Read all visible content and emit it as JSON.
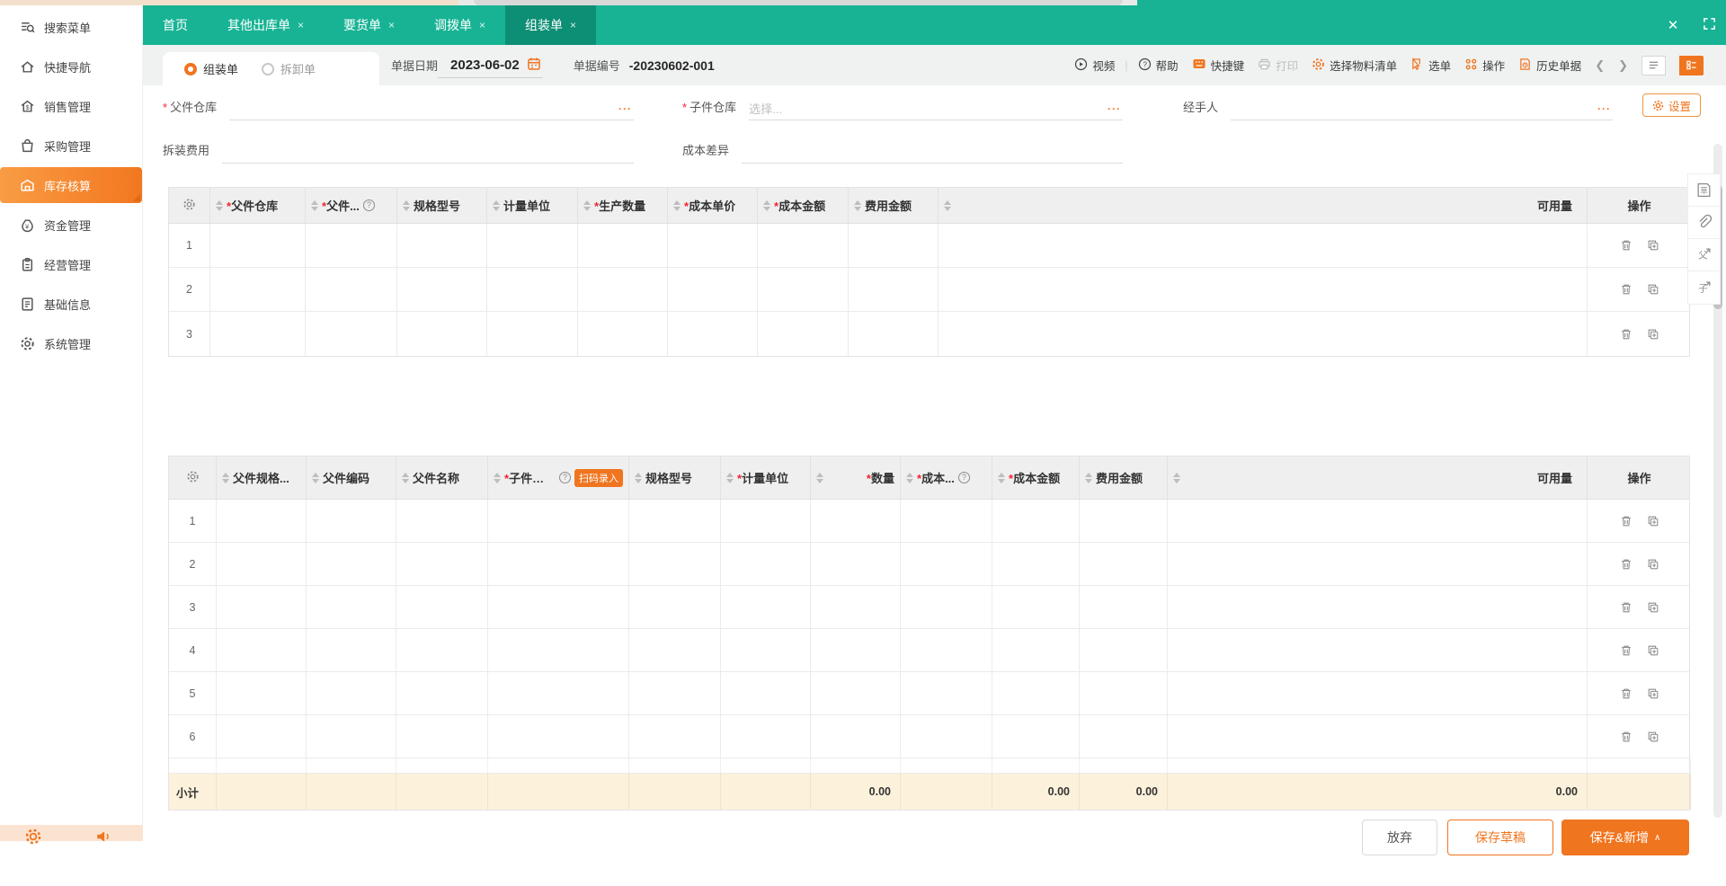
{
  "colors": {
    "teal": "#17b394",
    "teal_active": "#0c8f74",
    "accent": "#f0751f",
    "subtotal_bg": "#fcf1db",
    "required_red": "#f5222d"
  },
  "tabs": [
    {
      "label": "首页",
      "closable": false,
      "active": false
    },
    {
      "label": "其他出库单",
      "closable": true,
      "active": false
    },
    {
      "label": "要货单",
      "closable": true,
      "active": false
    },
    {
      "label": "调拨单",
      "closable": true,
      "active": false
    },
    {
      "label": "组装单",
      "closable": true,
      "active": true
    }
  ],
  "window_controls": {
    "close": "✕"
  },
  "sidebar": {
    "items": [
      {
        "label": "搜索菜单",
        "icon": "search",
        "active": false
      },
      {
        "label": "快捷导航",
        "icon": "home",
        "active": false
      },
      {
        "label": "销售管理",
        "icon": "sales",
        "active": false
      },
      {
        "label": "采购管理",
        "icon": "purchase",
        "active": false
      },
      {
        "label": "库存核算",
        "icon": "inventory",
        "active": true
      },
      {
        "label": "资金管理",
        "icon": "funds",
        "active": false
      },
      {
        "label": "经营管理",
        "icon": "business",
        "active": false
      },
      {
        "label": "基础信息",
        "icon": "baseinfo",
        "active": false
      },
      {
        "label": "系统管理",
        "icon": "system",
        "active": false
      }
    ]
  },
  "doc_toolbar": {
    "radios": [
      {
        "label": "组装单",
        "selected": true
      },
      {
        "label": "拆卸单",
        "selected": false
      }
    ],
    "date_label": "单据日期",
    "date_value": "2023-06-02",
    "no_label": "单据编号",
    "no_value": "-20230602-001",
    "actions": [
      {
        "label": "视频",
        "icon": "video",
        "disabled": false
      },
      {
        "label": "帮助",
        "icon": "help",
        "disabled": false
      },
      {
        "label": "快捷键",
        "icon": "hotkey",
        "disabled": false
      },
      {
        "label": "打印",
        "icon": "print",
        "disabled": true
      },
      {
        "label": "选择物料清单",
        "icon": "bom",
        "disabled": false
      },
      {
        "label": "选单",
        "icon": "pick",
        "disabled": false
      },
      {
        "label": "操作",
        "icon": "ops",
        "disabled": false
      },
      {
        "label": "历史单据",
        "icon": "history",
        "disabled": false
      }
    ],
    "settings_label": "设置"
  },
  "form": {
    "parent_wh": {
      "label": "父件仓库",
      "required": true,
      "value": "",
      "more": "···"
    },
    "child_wh": {
      "label": "子件仓库",
      "required": true,
      "placeholder": "选择...",
      "more": "···"
    },
    "handler": {
      "label": "经手人",
      "more": "···"
    },
    "fee": {
      "label": "拆装费用",
      "value": ""
    },
    "cost_diff": {
      "label": "成本差异",
      "value": ""
    }
  },
  "parent_table": {
    "columns": [
      {
        "type": "gear"
      },
      {
        "label": "父件仓库",
        "required": true,
        "sort": true
      },
      {
        "label": "父件...",
        "required": true,
        "sort": true,
        "help": true
      },
      {
        "label": "规格型号",
        "sort": true
      },
      {
        "label": "计量单位",
        "sort": true
      },
      {
        "label": "生产数量",
        "required": true,
        "sort": true
      },
      {
        "label": "成本单价",
        "required": true,
        "sort": true
      },
      {
        "label": "成本金额",
        "required": true,
        "sort": true
      },
      {
        "label": "费用金额",
        "sort": true
      },
      {
        "type": "filler",
        "sort": true,
        "usable_label": "可用量"
      },
      {
        "type": "action",
        "label": "操作"
      }
    ],
    "rows": [
      "1",
      "2",
      "3"
    ]
  },
  "child_table": {
    "columns": [
      {
        "type": "gear"
      },
      {
        "label": "父件规格...",
        "sort": true
      },
      {
        "label": "父件编码",
        "sort": true
      },
      {
        "label": "父件名称",
        "sort": true
      },
      {
        "label": "子件商品",
        "required": true,
        "sort": true,
        "help": true,
        "badge": "扫码录入"
      },
      {
        "label": "规格型号",
        "sort": true
      },
      {
        "label": "计量单位",
        "required": true,
        "sort": true
      },
      {
        "label": "数量",
        "required": true,
        "sort": true,
        "align": "right"
      },
      {
        "label": "成本...",
        "required": true,
        "sort": true,
        "help": true
      },
      {
        "label": "成本金额",
        "required": true,
        "sort": true
      },
      {
        "label": "费用金额",
        "sort": true
      },
      {
        "type": "filler",
        "sort": true,
        "usable_label": "可用量"
      },
      {
        "type": "action",
        "label": "操作"
      }
    ],
    "rows": [
      "1",
      "2",
      "3",
      "4",
      "5",
      "6"
    ],
    "subtotal": {
      "label": "小计",
      "qty": "0.00",
      "cost_amount": "0.00",
      "fee_amount": "0.00",
      "usable": "0.00"
    }
  },
  "footer": {
    "discard": "放弃",
    "save_draft": "保存草稿",
    "save_new": "保存&新增",
    "save_new_caret": "∧"
  },
  "side_rail": [
    {
      "icon": "draft",
      "label": "草"
    },
    {
      "icon": "attachment",
      "label": ""
    },
    {
      "icon": "parent-expand",
      "label": "父"
    },
    {
      "icon": "child-expand",
      "label": "子"
    }
  ]
}
